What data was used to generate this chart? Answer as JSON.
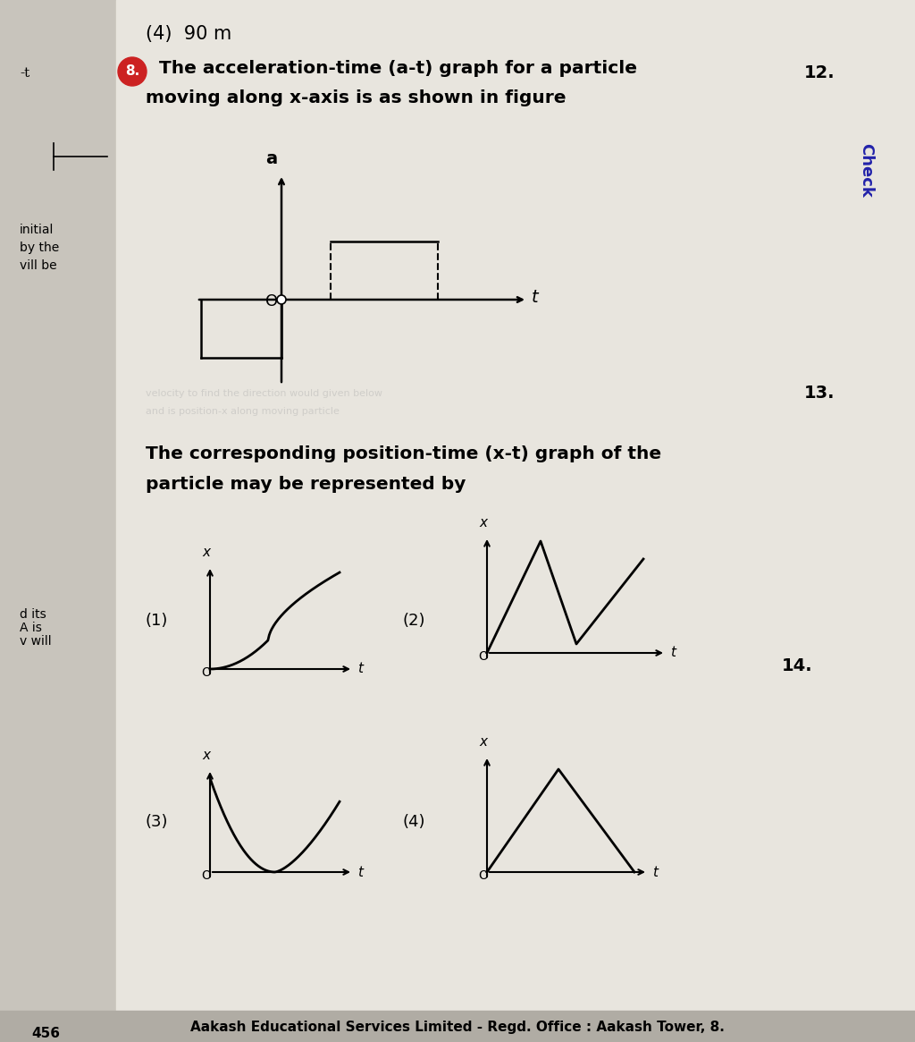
{
  "background_color": "#e8e4dc",
  "page_bg": "#d8d4cc",
  "title_text": "(4)  90 m",
  "question_text1": "The acceleration-time (a-t) graph for a particle",
  "question_text2": "moving along x-axis is as shown in figure",
  "sub_question1": "The corresponding position-time (x-t) graph of the",
  "sub_question2": "particle may be represented by",
  "footer": "Aakash Educational Services Limited - Regd. Office : Aakash Tower, 8.",
  "side_label1": "12.",
  "side_label2": "13.",
  "side_label3": "14.",
  "check_text": "Check",
  "page_num": "456",
  "opt1": "(1)",
  "opt2": "(2)",
  "opt3": "(3)",
  "opt4": "(4)"
}
